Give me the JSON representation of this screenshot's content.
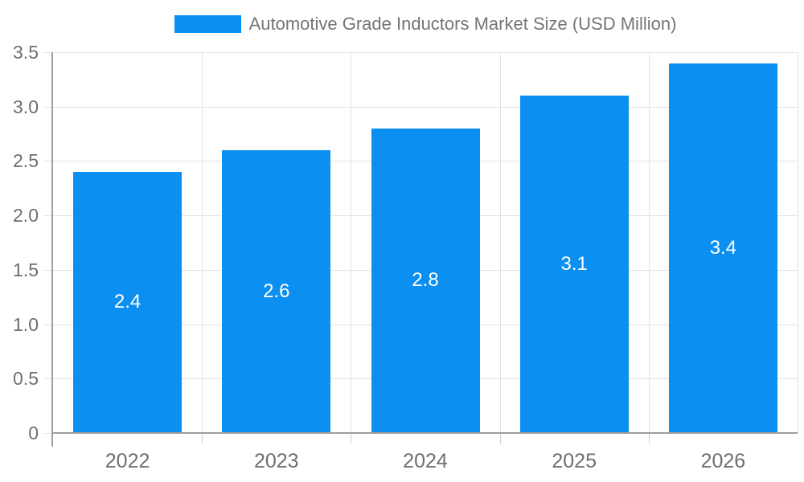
{
  "chart_data": {
    "type": "bar",
    "title": "Automotive Grade Inductors Market Size (USD Million)",
    "categories": [
      "2022",
      "2023",
      "2024",
      "2025",
      "2026"
    ],
    "values": [
      2.4,
      2.6,
      2.8,
      3.1,
      3.4
    ],
    "value_labels": [
      "2.4",
      "2.6",
      "2.8",
      "3.1",
      "3.4"
    ],
    "xlabel": "",
    "ylabel": "",
    "ylim": [
      0,
      3.5
    ],
    "yticks": [
      "0",
      "0.5",
      "1.0",
      "1.5",
      "2.0",
      "2.5",
      "3.0",
      "3.5"
    ],
    "grid": true,
    "legend_position": "top",
    "colors": {
      "bar": "#0B8FF0",
      "bar_value_text": "#ffffff",
      "axis_line": "#9e9e9e",
      "gridline": "#e3e3e3",
      "tick": "#cfcfcf",
      "axis_label_text": "#6e6e6e",
      "legend_text": "#757575",
      "background": "#ffffff"
    }
  }
}
